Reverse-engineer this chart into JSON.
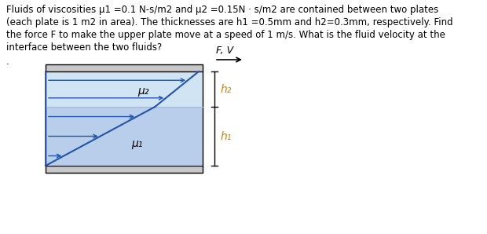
{
  "fig_width": 6.2,
  "fig_height": 2.98,
  "dpi": 100,
  "plate_color": "#c8c8c8",
  "fluid1_color": "#b8ceea",
  "fluid2_color": "#d0e4f4",
  "line_color": "#2255aa",
  "text_color": "#000000",
  "mu1_label": "μ₁",
  "mu2_label": "μ₂",
  "h1_label": "h₁",
  "h2_label": "h₂",
  "fv_label": "F, V",
  "text_line1": "Fluids of viscosities μ1 =0.1 N-s/m2 and μ2 =0.15N · s/m2 are contained between two plates",
  "text_line2": "(each plate is 1 m2 in area). The thicknesses are h1 =0.5mm and h2=0.3mm, respectively. Find",
  "text_line3": "the force F to make the upper plate move at a speed of 1 m/s. What is the fluid velocity at the",
  "text_line4": "interface between the two fluids?"
}
